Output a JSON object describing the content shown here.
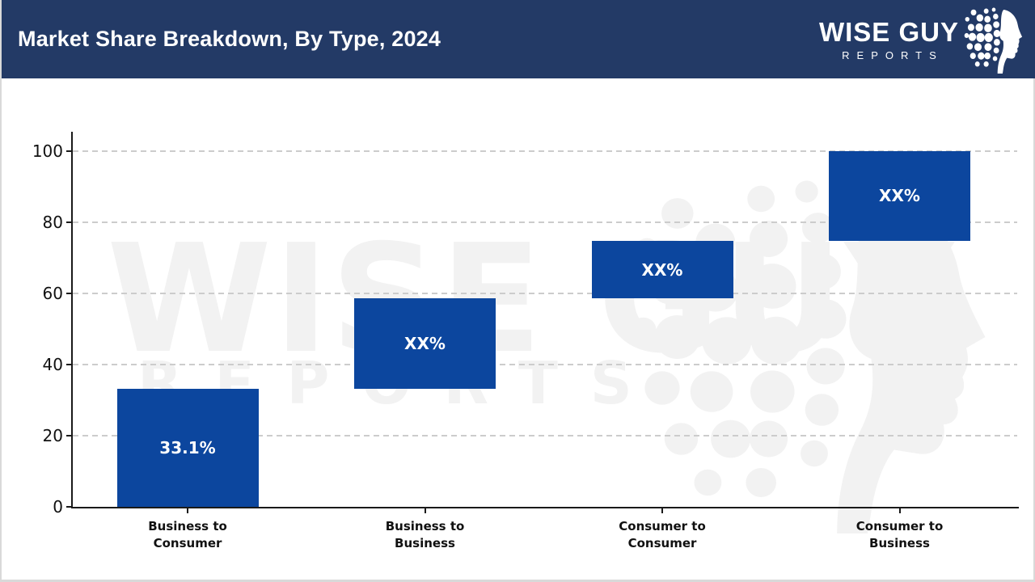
{
  "header": {
    "title": "Market Share Breakdown, By Type, 2024",
    "logo": {
      "wordmark": "WISE GUY",
      "subtext": "REPORTS",
      "icon": "dotted-head-profile-icon"
    }
  },
  "watermark": {
    "line1": "WISE GUY",
    "line2": "REPORTS",
    "icon": "dotted-head-profile-icon"
  },
  "colors": {
    "header_bg": "#233a66",
    "bar": "#0c469e",
    "grid": "#cccccc",
    "axis": "#1a1a1a",
    "watermark": "#f2f2f2",
    "bar_label": "#ffffff",
    "frame": "#d9d9d9"
  },
  "chart_data": {
    "type": "bar",
    "subtype": "waterfall-floating-bars",
    "title": "Market Share Breakdown, By Type, 2024",
    "categories": [
      "Business to\nConsumer",
      "Business to\nBusiness",
      "Consumer to\nConsumer",
      "Consumer to\nBusiness"
    ],
    "bars": [
      {
        "start": 0,
        "end": 33.1,
        "label": "33.1%"
      },
      {
        "start": 33.1,
        "end": 58.6,
        "label": "XX%"
      },
      {
        "start": 58.6,
        "end": 74.8,
        "label": "XX%"
      },
      {
        "start": 74.8,
        "end": 100,
        "label": "XX%"
      }
    ],
    "xlabel": "",
    "ylabel": "",
    "ylim": [
      0,
      100
    ],
    "yticks": [
      0,
      20,
      40,
      60,
      80,
      100
    ],
    "grid": "horizontal-dashed",
    "legend": null
  }
}
